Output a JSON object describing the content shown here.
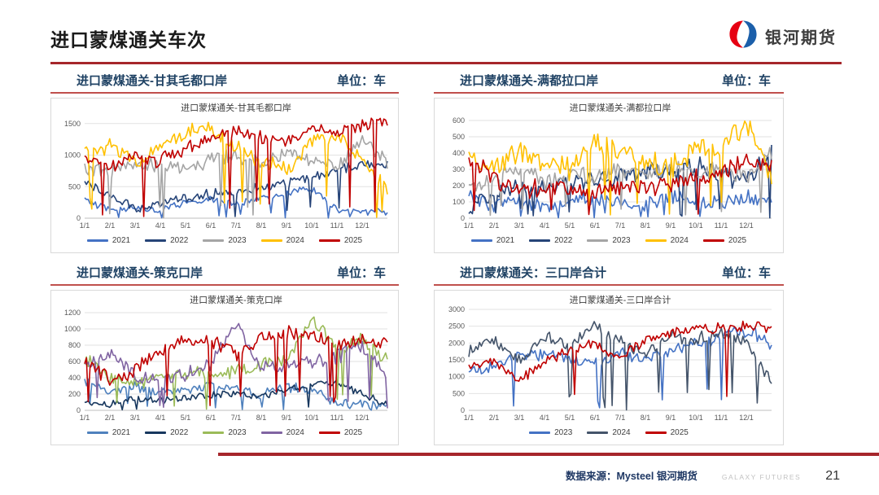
{
  "page": {
    "title": "进口蒙煤通关车次",
    "logo_text": "银河期货",
    "footer_source": "数据来源：Mysteel 银河期货",
    "footer_brand": "GALAXY FUTURES",
    "page_number": "21"
  },
  "colors": {
    "accent_red": "#A6262B",
    "section_underline_red": "#C0504D",
    "section_header_blue": "#1F4264",
    "footer_blue": "#1F3864"
  },
  "charts": [
    {
      "header_title": "进口蒙煤通关-甘其毛都口岸",
      "unit_label": "单位：车",
      "chart_data": {
        "type": "line",
        "title": "进口蒙煤通关-甘其毛都口岸",
        "x_ticks": [
          "1/1",
          "2/1",
          "3/1",
          "4/1",
          "5/1",
          "6/1",
          "7/1",
          "8/1",
          "9/1",
          "10/1",
          "11/1",
          "12/1"
        ],
        "y_ticks": [
          0,
          500,
          1000,
          1500
        ],
        "ylim": [
          0,
          1600
        ],
        "grid": true,
        "legend_position": "bottom",
        "series": [
          {
            "name": "2021",
            "color": "#4472C4",
            "noise": 70,
            "anchors": [
              300,
              130,
              180,
              120,
              260,
              300,
              220,
              330,
              380,
              480,
              130,
              90,
              110
            ]
          },
          {
            "name": "2022",
            "color": "#264478",
            "noise": 90,
            "anchors": [
              600,
              350,
              150,
              220,
              330,
              380,
              420,
              480,
              560,
              640,
              760,
              860,
              830
            ]
          },
          {
            "name": "2023",
            "color": "#A5A5A5",
            "noise": 140,
            "anchors": [
              820,
              700,
              880,
              840,
              800,
              940,
              1000,
              900,
              1050,
              950,
              820,
              1250,
              900
            ]
          },
          {
            "name": "2024",
            "color": "#FFC000",
            "noise": 150,
            "anchors": [
              1050,
              1150,
              900,
              1100,
              1350,
              1450,
              1100,
              900,
              750,
              1250,
              1300,
              950,
              480
            ]
          },
          {
            "name": "2025",
            "color": "#C00000",
            "noise": 140,
            "anchors": [
              950,
              820,
              1000,
              920,
              1100,
              1250,
              1380,
              1280,
              1200,
              1420,
              1350,
              1480,
              1520
            ]
          }
        ]
      }
    },
    {
      "header_title": "进口蒙煤通关-满都拉口岸",
      "unit_label": "单位：车",
      "chart_data": {
        "type": "line",
        "title": "进口蒙煤通关-满都拉口岸",
        "x_ticks": [
          "1/1",
          "2/1",
          "3/1",
          "4/1",
          "5/1",
          "6/1",
          "7/1",
          "8/1",
          "9/1",
          "10/1",
          "11/1",
          "12/1"
        ],
        "y_ticks": [
          0,
          100,
          200,
          300,
          400,
          500,
          600
        ],
        "ylim": [
          0,
          620
        ],
        "grid": true,
        "legend_position": "bottom",
        "series": [
          {
            "name": "2021",
            "color": "#4472C4",
            "noise": 55,
            "anchors": [
              120,
              80,
              100,
              60,
              110,
              140,
              100,
              80,
              140,
              110,
              90,
              130,
              120
            ]
          },
          {
            "name": "2022",
            "color": "#264478",
            "noise": 70,
            "anchors": [
              60,
              150,
              200,
              180,
              220,
              240,
              260,
              300,
              280,
              320,
              260,
              220,
              420
            ]
          },
          {
            "name": "2023",
            "color": "#A5A5A5",
            "noise": 65,
            "anchors": [
              210,
              250,
              300,
              220,
              270,
              250,
              300,
              260,
              310,
              280,
              300,
              260,
              420
            ]
          },
          {
            "name": "2024",
            "color": "#FFC000",
            "noise": 85,
            "anchors": [
              380,
              300,
              410,
              350,
              300,
              500,
              400,
              350,
              310,
              420,
              450,
              580,
              260
            ]
          },
          {
            "name": "2025",
            "color": "#C00000",
            "noise": 70,
            "anchors": [
              370,
              250,
              160,
              200,
              180,
              160,
              200,
              190,
              220,
              250,
              280,
              370,
              300
            ]
          }
        ]
      }
    },
    {
      "header_title": "进口蒙煤通关-策克口岸",
      "unit_label": "单位：车",
      "chart_data": {
        "type": "line",
        "title": "进口蒙煤通关-策克口岸",
        "x_ticks": [
          "1/1",
          "2/1",
          "3/1",
          "4/1",
          "5/1",
          "6/1",
          "7/1",
          "8/1",
          "9/1",
          "10/1",
          "11/1",
          "12/1"
        ],
        "y_ticks": [
          0,
          200,
          400,
          600,
          800,
          1000,
          1200
        ],
        "ylim": [
          0,
          1240
        ],
        "grid": true,
        "legend_position": "bottom",
        "series": [
          {
            "name": "2021",
            "color": "#4F81BD",
            "noise": 75,
            "anchors": [
              340,
              250,
              300,
              210,
              260,
              300,
              250,
              210,
              300,
              250,
              110,
              60,
              60
            ]
          },
          {
            "name": "2022",
            "color": "#17375E",
            "noise": 55,
            "anchors": [
              100,
              60,
              150,
              110,
              160,
              180,
              200,
              160,
              250,
              300,
              340,
              200,
              60
            ]
          },
          {
            "name": "2023",
            "color": "#9BBB59",
            "noise": 110,
            "anchors": [
              640,
              400,
              360,
              420,
              450,
              410,
              500,
              560,
              650,
              1140,
              750,
              880,
              600
            ]
          },
          {
            "name": "2024",
            "color": "#8064A2",
            "noise": 110,
            "anchors": [
              520,
              700,
              400,
              360,
              450,
              560,
              1080,
              500,
              550,
              600,
              660,
              780,
              430
            ]
          },
          {
            "name": "2025",
            "color": "#C00000",
            "noise": 110,
            "anchors": [
              620,
              360,
              500,
              700,
              880,
              840,
              700,
              890,
              940,
              900,
              800,
              850,
              800
            ]
          }
        ]
      }
    },
    {
      "header_title": "进口蒙煤通关：三口岸合计",
      "unit_label": "单位：车",
      "chart_data": {
        "type": "line",
        "title": "进口蒙煤通关-三口岸合计",
        "x_ticks": [
          "1/1",
          "2/1",
          "3/1",
          "4/1",
          "5/1",
          "6/1",
          "7/1",
          "8/1",
          "9/1",
          "10/1",
          "11/1",
          "12/1"
        ],
        "y_ticks": [
          0,
          500,
          1000,
          1500,
          2000,
          2500,
          3000
        ],
        "ylim": [
          0,
          3000
        ],
        "grid": true,
        "legend_position": "bottom",
        "series": [
          {
            "name": "2023",
            "color": "#4472C4",
            "noise": 230,
            "anchors": [
              1150,
              1300,
              1600,
              1700,
              1500,
              1350,
              1700,
              1500,
              1800,
              2000,
              2200,
              2400,
              1900
            ]
          },
          {
            "name": "2024",
            "color": "#44546A",
            "noise": 230,
            "anchors": [
              1800,
              2100,
              1500,
              2200,
              1900,
              2550,
              2000,
              1750,
              2200,
              2100,
              2300,
              2000,
              900
            ]
          },
          {
            "name": "2025",
            "color": "#C00000",
            "noise": 180,
            "anchors": [
              1250,
              1450,
              900,
              1450,
              1800,
              2000,
              1550,
              2100,
              2300,
              2400,
              2450,
              2500,
              2450
            ]
          }
        ]
      }
    }
  ]
}
